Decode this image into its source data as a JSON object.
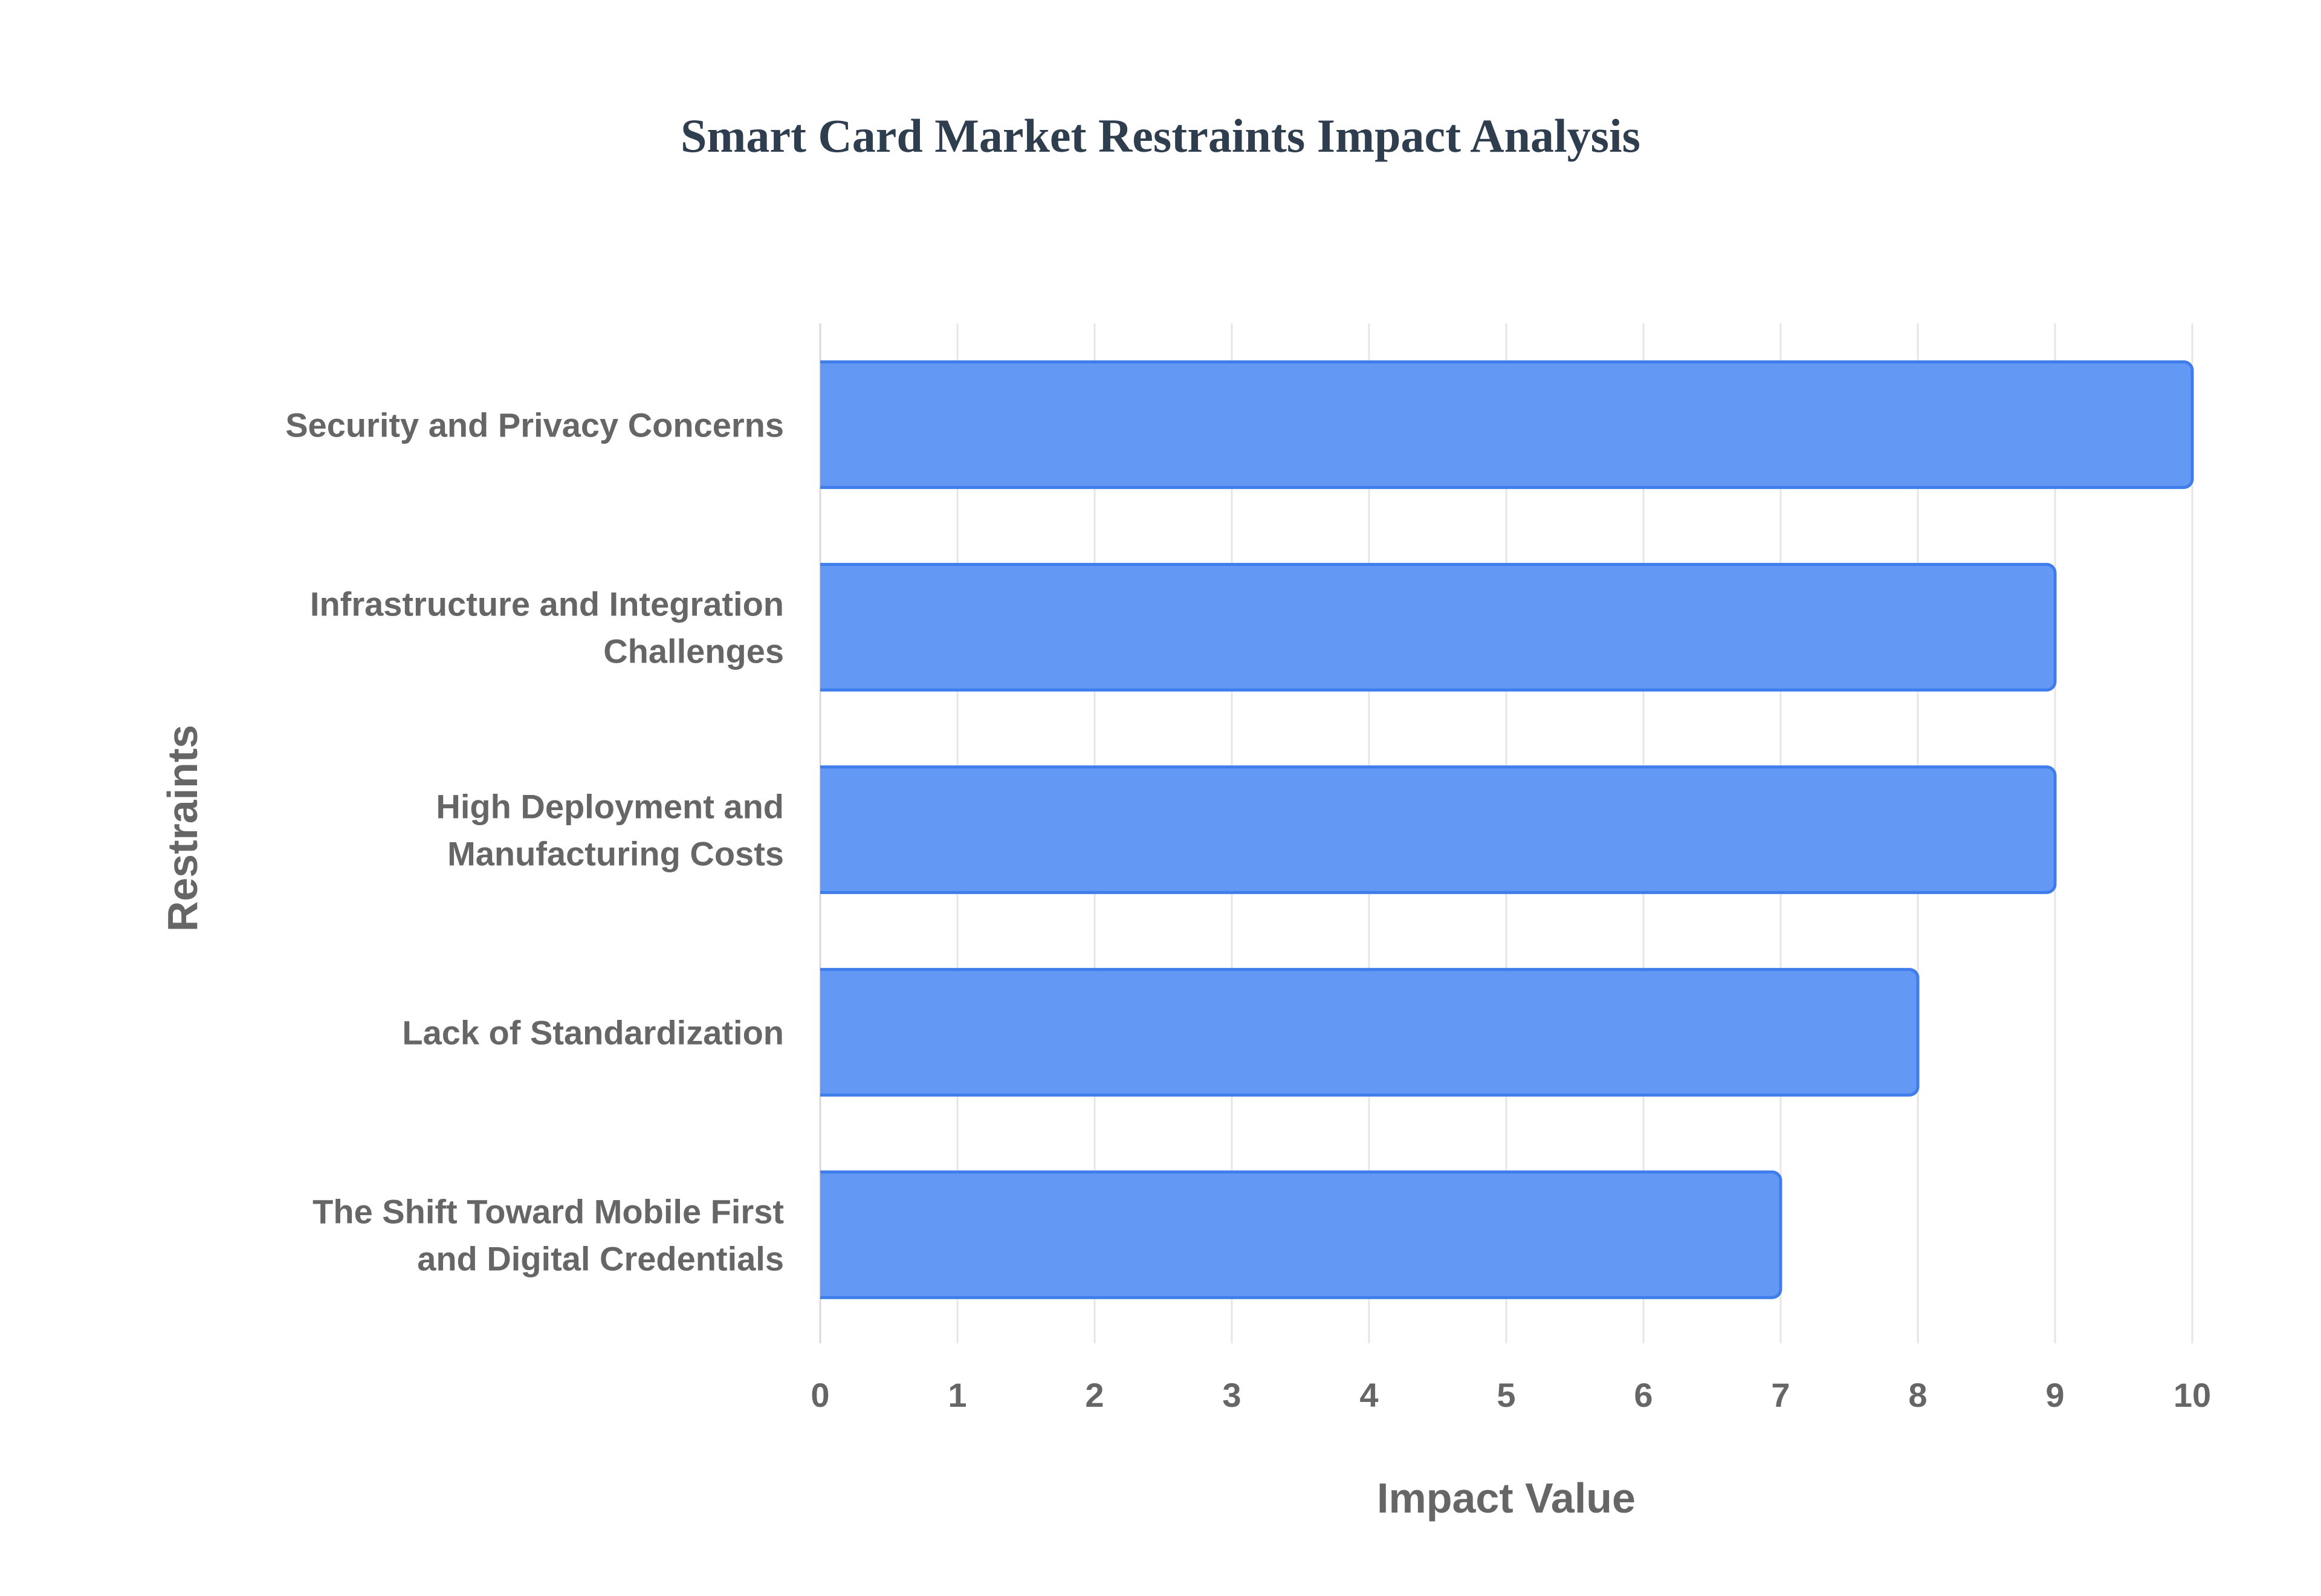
{
  "chart_data": {
    "type": "bar",
    "orientation": "horizontal",
    "title": "Smart Card Market Restraints Impact Analysis",
    "xlabel": "Impact Value",
    "ylabel": "Restraints",
    "categories": [
      [
        "Security and Privacy Concerns"
      ],
      [
        "Infrastructure and Integration",
        "Challenges"
      ],
      [
        "High Deployment and",
        "Manufacturing Costs"
      ],
      [
        "Lack of Standardization"
      ],
      [
        "The Shift Toward Mobile First",
        "and Digital Credentials"
      ]
    ],
    "values": [
      10,
      9,
      9,
      8,
      7
    ],
    "xlim": [
      0,
      10
    ],
    "xticks": [
      "0",
      "1",
      "2",
      "3",
      "4",
      "5",
      "6",
      "7",
      "8",
      "9",
      "10"
    ],
    "grid": true,
    "legend": "none",
    "colors": {
      "bar_fill": "#6399f4",
      "bar_stroke": "#3f7ded",
      "grid": "#e6e6e6",
      "text": "#666666",
      "title": "#2f3e4e"
    }
  }
}
